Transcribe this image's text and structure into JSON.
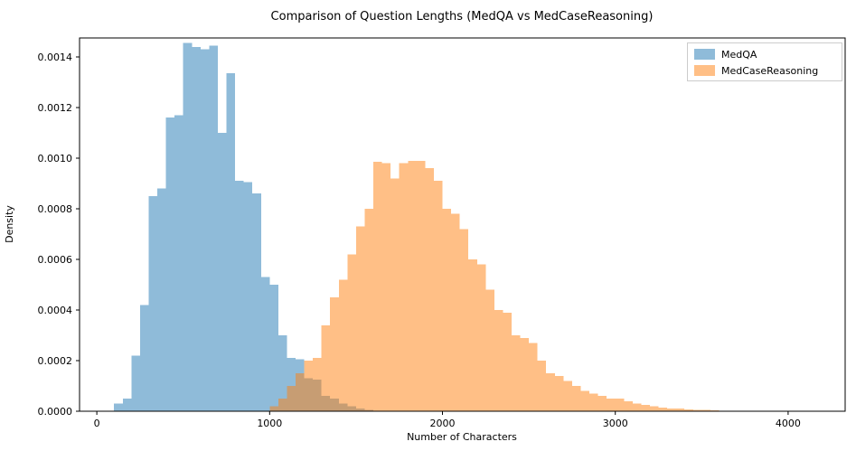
{
  "chart_data": {
    "type": "histogram",
    "title": "Comparison of Question Lengths (MedQA vs MedCaseReasoning)",
    "xlabel": "Number of Characters",
    "ylabel": "Density",
    "xlim": [
      -100,
      4330
    ],
    "ylim": [
      0,
      0.001475
    ],
    "xticks": [
      0,
      1000,
      2000,
      3000,
      4000
    ],
    "xtick_labels": [
      "0",
      "1000",
      "2000",
      "3000",
      "4000"
    ],
    "yticks": [
      0,
      0.0002,
      0.0004,
      0.0006,
      0.0008,
      0.001,
      0.0012,
      0.0014
    ],
    "ytick_labels": [
      "0.0000",
      "0.0002",
      "0.0004",
      "0.0006",
      "0.0008",
      "0.0010",
      "0.0012",
      "0.0014"
    ],
    "grid": false,
    "alpha": 0.5,
    "legend": {
      "position": "upper right",
      "entries": [
        {
          "label": "MedQA",
          "color": "#1f77b4"
        },
        {
          "label": "MedCaseReasoning",
          "color": "#ff7f0e"
        }
      ]
    },
    "series": [
      {
        "name": "MedQA",
        "key": "medqa",
        "color": "#1f77b4",
        "bin_start": 100,
        "bin_width": 50,
        "densities": [
          3e-05,
          5e-05,
          0.00022,
          0.00042,
          0.00085,
          0.00088,
          0.00116,
          0.00117,
          0.001455,
          0.00144,
          0.00143,
          0.001445,
          0.0011,
          0.001335,
          0.00091,
          0.000905,
          0.00086,
          0.00053,
          0.0005,
          0.0003,
          0.00021,
          0.000205,
          0.00013,
          0.000125,
          6e-05,
          5e-05,
          3e-05,
          2e-05,
          1e-05,
          5e-06
        ]
      },
      {
        "name": "MedCaseReasoning",
        "key": "medcasereasoning",
        "color": "#ff7f0e",
        "bin_start": 1000,
        "bin_width": 50,
        "densities": [
          2e-05,
          5e-05,
          0.0001,
          0.00015,
          0.0002,
          0.00021,
          0.00034,
          0.00045,
          0.00052,
          0.00062,
          0.00073,
          0.0008,
          0.000985,
          0.00098,
          0.00092,
          0.00098,
          0.00099,
          0.00099,
          0.00096,
          0.00091,
          0.0008,
          0.00078,
          0.00072,
          0.0006,
          0.00058,
          0.00048,
          0.0004,
          0.00039,
          0.0003,
          0.00029,
          0.00027,
          0.0002,
          0.00015,
          0.00014,
          0.00012,
          0.0001,
          8e-05,
          7e-05,
          6e-05,
          5e-05,
          5e-05,
          4e-05,
          3e-05,
          2.5e-05,
          2e-05,
          1.5e-05,
          1e-05,
          1e-05,
          8e-06,
          5e-06,
          5e-06,
          3e-06
        ]
      }
    ]
  }
}
